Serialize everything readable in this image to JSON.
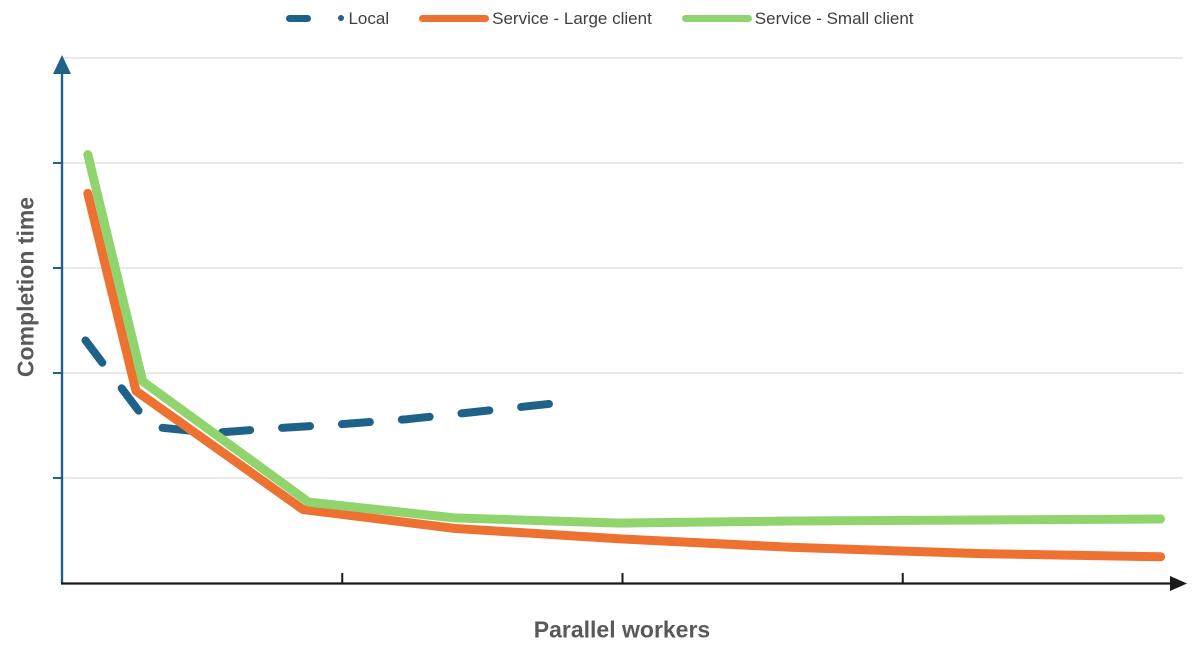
{
  "page": {
    "background": "#FFFFFF"
  },
  "style": {
    "local_color": "#1F6287",
    "large_client_color": "#ED7131",
    "small_client_color": "#90D46E",
    "x_axis_color": "#1A1A1A",
    "y_axis_color": "#1F6287",
    "grid_color": "#E3E3E3",
    "axis_title_color": "#595959",
    "legend_text_color": "#404040"
  },
  "chart_data": {
    "type": "line",
    "title": "",
    "xlabel": "Parallel workers",
    "ylabel": "Completion time",
    "units_note": "No numeric tick labels are shown in the chart. y values are in gridline units (1 = one gridline interval above the x-axis, 5 = top gridline). x values are percent of the x-axis length.",
    "grid": true,
    "legend_position": "top-center",
    "x_axis": {
      "min_norm": 0,
      "max_norm": 100,
      "tick_positions_norm": [
        25,
        50,
        75
      ],
      "numeric_labels_visible": false,
      "arrow": true
    },
    "y_axis": {
      "min_units": 0,
      "max_units": 5,
      "gridline_units": [
        1,
        2,
        3,
        4,
        5
      ],
      "tick_units": [
        1,
        2,
        3,
        4
      ],
      "numeric_labels_visible": false,
      "arrow": true
    },
    "series": [
      {
        "name": "Local",
        "color": "#1F6287",
        "style": "dashed",
        "points": [
          [
            2.1,
            2.31
          ],
          [
            7.9,
            1.49
          ],
          [
            13.5,
            1.43
          ],
          [
            18.5,
            1.47
          ],
          [
            24.6,
            1.51
          ],
          [
            30.8,
            1.56
          ],
          [
            36.9,
            1.63
          ],
          [
            44.7,
            1.72
          ]
        ]
      },
      {
        "name": "Service - Large client",
        "color": "#ED7131",
        "style": "solid",
        "points": [
          [
            2.3,
            3.71
          ],
          [
            6.6,
            1.83
          ],
          [
            21.5,
            0.7
          ],
          [
            35,
            0.52
          ],
          [
            49.8,
            0.42
          ],
          [
            65,
            0.34
          ],
          [
            81.9,
            0.28
          ],
          [
            98,
            0.25
          ]
        ]
      },
      {
        "name": "Service - Small client",
        "color": "#90D46E",
        "style": "solid",
        "points": [
          [
            2.3,
            4.08
          ],
          [
            7.2,
            1.92
          ],
          [
            22,
            0.77
          ],
          [
            35,
            0.62
          ],
          [
            49.8,
            0.57
          ],
          [
            65,
            0.59
          ],
          [
            81.9,
            0.6
          ],
          [
            98,
            0.61
          ]
        ]
      }
    ]
  }
}
